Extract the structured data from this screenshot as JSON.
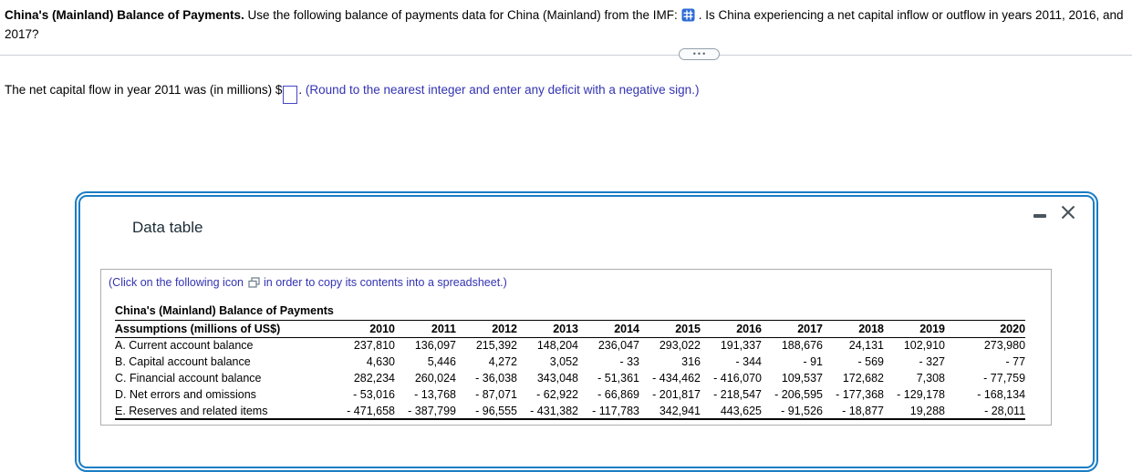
{
  "page": {
    "header": {
      "title_bold": "China's (Mainland) Balance of Payments.",
      "text_after_title": "  Use the following balance of payments data for China (Mainland) from the IMF:",
      "imf_icon": "spreadsheet-grid-icon",
      "text_question": ". Is China experiencing a net capital inflow or outflow in years 2011, 2016, and 2017?"
    },
    "divider": {
      "ellipsis": "•••"
    },
    "question": {
      "prompt": "The net capital flow in year 2011 was (in millions) $",
      "answer_value": "",
      "period": ".",
      "instruction": "(Round to the nearest integer and enter any deficit with a negative sign.)"
    }
  },
  "dialog": {
    "title": "Data table",
    "minimize_icon": "minimize-icon",
    "close_icon": "close-icon",
    "note": {
      "prefix": "(Click on the following icon",
      "copy_icon": "copy-to-spreadsheet-icon",
      "suffix": "in order to copy its contents into a spreadsheet.)"
    },
    "table": {
      "title": "China's (Mainland) Balance of Payments",
      "header_label": "Assumptions (millions of US$)",
      "years": [
        "2010",
        "2011",
        "2012",
        "2013",
        "2014",
        "2015",
        "2016",
        "2017",
        "2018",
        "2019",
        "2020"
      ],
      "rows": [
        {
          "label": "A. Current account balance",
          "values": [
            "237,810",
            "136,097",
            "215,392",
            "148,204",
            "236,047",
            "293,022",
            "191,337",
            "188,676",
            "24,131",
            "102,910",
            "273,980"
          ]
        },
        {
          "label": "B. Capital account balance",
          "values": [
            "4,630",
            "5,446",
            "4,272",
            "3,052",
            "- 33",
            "316",
            "- 344",
            "- 91",
            "- 569",
            "- 327",
            "- 77"
          ]
        },
        {
          "label": "C. Financial account balance",
          "values": [
            "282,234",
            "260,024",
            "- 36,038",
            "343,048",
            "- 51,361",
            "- 434,462",
            "- 416,070",
            "109,537",
            "172,682",
            "7,308",
            "- 77,759"
          ]
        },
        {
          "label": "D. Net errors and omissions",
          "values": [
            "- 53,016",
            "- 13,768",
            "- 87,071",
            "- 62,922",
            "- 66,869",
            "- 201,817",
            "- 218,547",
            "- 206,595",
            "- 177,368",
            "- 129,178",
            "- 168,134"
          ]
        },
        {
          "label": "E. Reserves and related items",
          "values": [
            "- 471,658",
            "- 387,799",
            "- 96,555",
            "- 431,382",
            "- 117,783",
            "342,941",
            "443,625",
            "- 91,526",
            "- 18,877",
            "19,288",
            "- 28,011"
          ]
        }
      ]
    }
  },
  "colors": {
    "dialog_border": "#1a7dc4",
    "instruction_blue": "#3333b3",
    "imf_icon_blue": "#2e6bd6",
    "divider_gray": "#c9ced3",
    "table_container_border": "#adadad",
    "window_control_gray": "#4a545c"
  }
}
